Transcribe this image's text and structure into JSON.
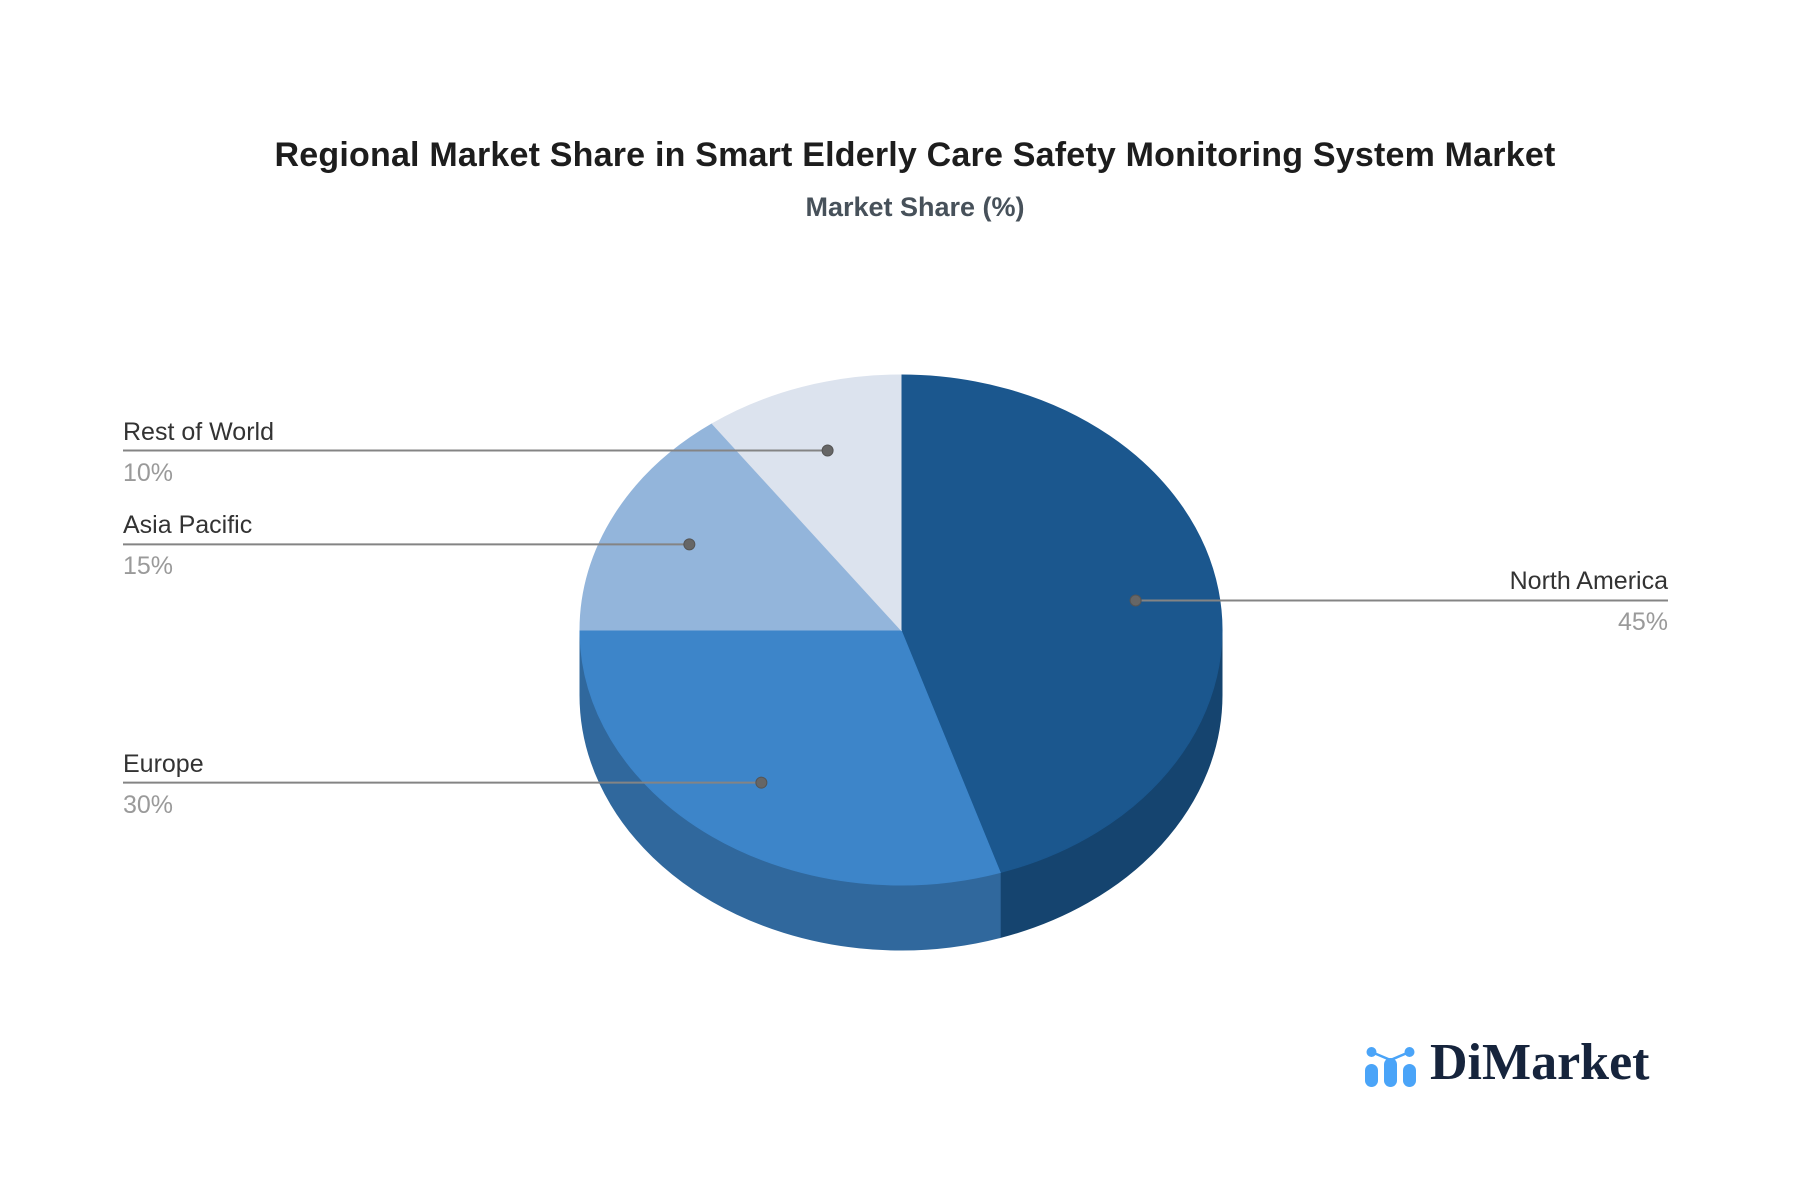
{
  "page": {
    "background": "#ffffff"
  },
  "header": {
    "title": "Regional Market Share in Smart Elderly Care Safety Monitoring System Market",
    "subtitle": "Market Share (%)"
  },
  "chart_data": {
    "type": "pie",
    "style": "3d",
    "title": "Regional Market Share in Smart Elderly Care Safety Monitoring System Market",
    "subtitle": "Market Share (%)",
    "unit": "%",
    "categories": [
      "North America",
      "Europe",
      "Asia Pacific",
      "Rest of World"
    ],
    "values": [
      45,
      30,
      15,
      10
    ],
    "value_labels": [
      "45%",
      "30%",
      "15%",
      "10%"
    ],
    "colors": [
      "#1b578e",
      "#3d85c9",
      "#93b5db",
      "#dce3ee"
    ],
    "start_angle_deg": 0,
    "direction": "clockwise",
    "legend": "none",
    "label_layout": "outside-leader-lines",
    "leader_line_color": "#848484",
    "leader_dot_color": "#666666",
    "label_name_color": "#333333",
    "label_percent_color": "#9a9a9a"
  },
  "branding": {
    "logo_text": "DiMarket",
    "logo_icon": "bar-chart-logo-icon",
    "logo_text_color": "#16243c",
    "logo_bar_color": "#4aa4f8"
  }
}
